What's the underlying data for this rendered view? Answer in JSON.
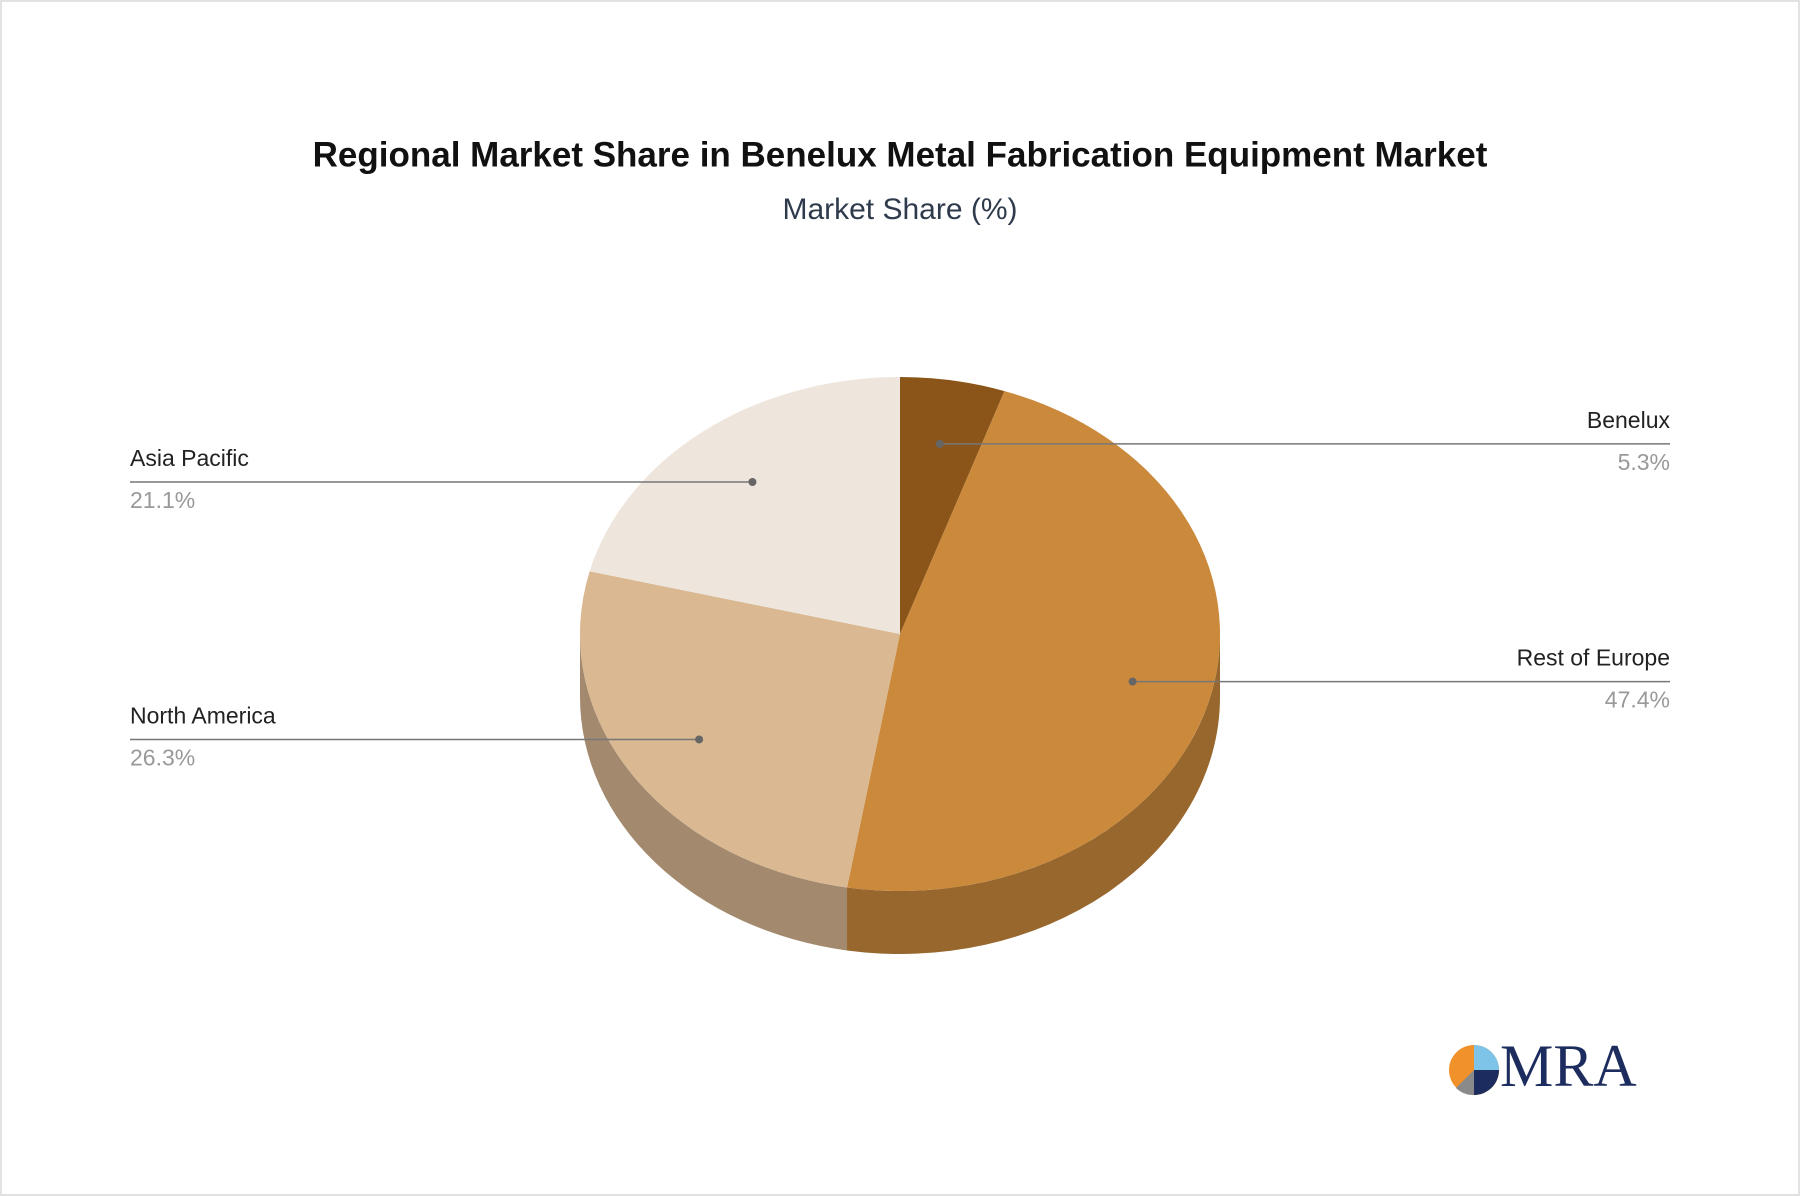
{
  "chart_data": {
    "type": "pie3d",
    "title": "Regional Market Share in Benelux Metal Fabrication Equipment Market",
    "subtitle": "Market Share (%)",
    "categories": [
      "Benelux",
      "Rest of Europe",
      "North America",
      "Asia Pacific"
    ],
    "values": [
      5.3,
      47.4,
      26.3,
      21.1
    ],
    "value_labels": [
      "5.3%",
      "47.4%",
      "26.3%",
      "21.1%"
    ],
    "colors": [
      "#8b5519",
      "#cb893c",
      "#d9b892",
      "#eee5dc"
    ]
  },
  "logo": "MRA"
}
